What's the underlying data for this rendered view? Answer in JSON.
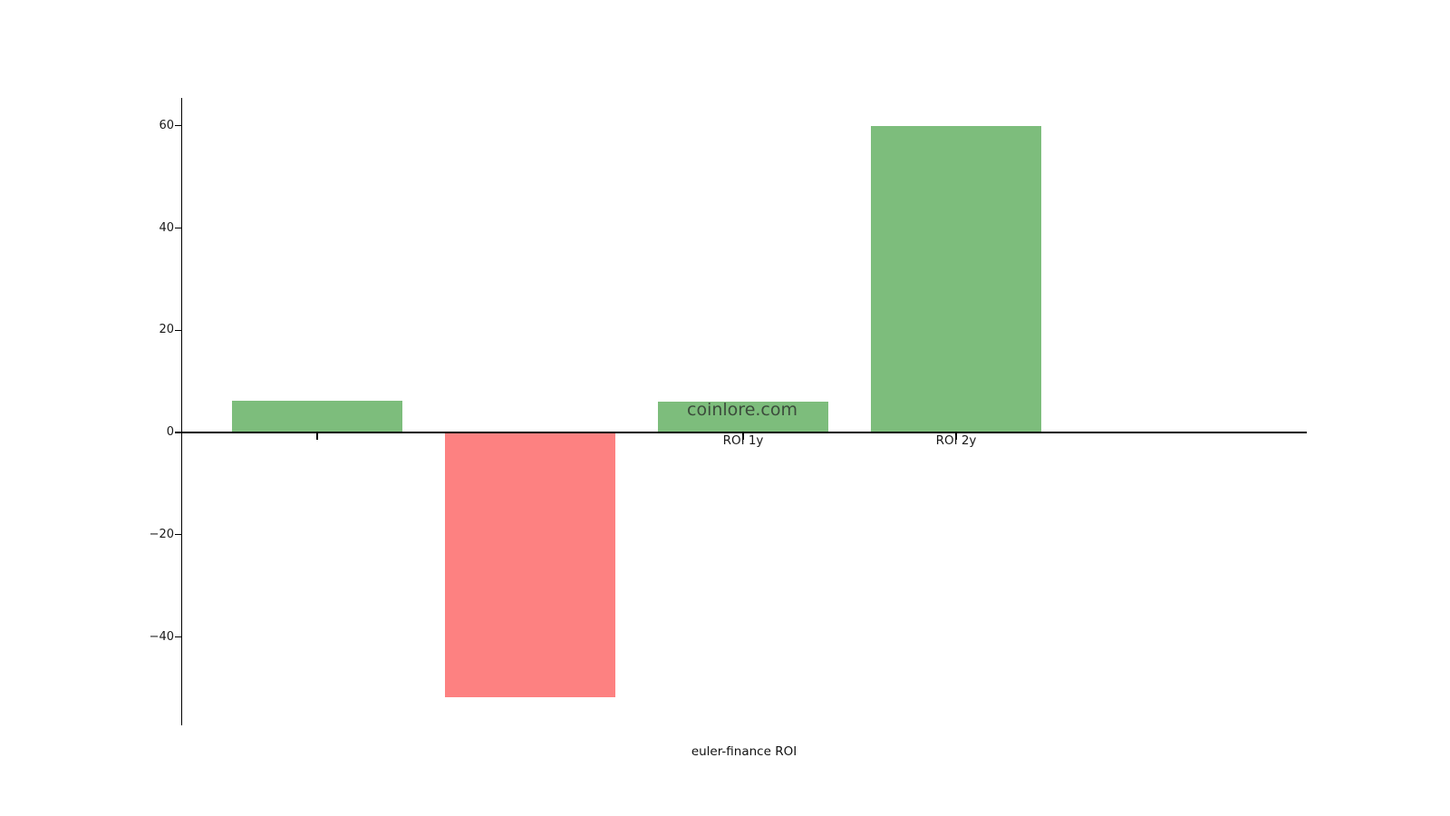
{
  "page": {
    "background_color": "#ffffff"
  },
  "watermark": {
    "text": "coinlore.com",
    "color": "#3c4c3c"
  },
  "chart_data": {
    "type": "bar",
    "title": "euler-finance ROI",
    "categories": [
      "",
      "",
      "ROI 1y",
      "ROI 2y"
    ],
    "values": [
      6.2,
      -51.8,
      6.0,
      60.0
    ],
    "bar_colors": [
      "#7dbd7c",
      "#fd8181",
      "#7dbd7c",
      "#7dbd7c"
    ],
    "positive_color": "#7dbd7c",
    "negative_color": "#fd8181",
    "yticks": [
      60,
      40,
      20,
      0,
      -20,
      -40
    ],
    "ylim": [
      -57,
      65
    ],
    "xlabel": "",
    "ylabel": "",
    "grid": false,
    "legend_position": "none",
    "axis_color": "#000000",
    "tick_label_color": "#1a1a1a"
  }
}
